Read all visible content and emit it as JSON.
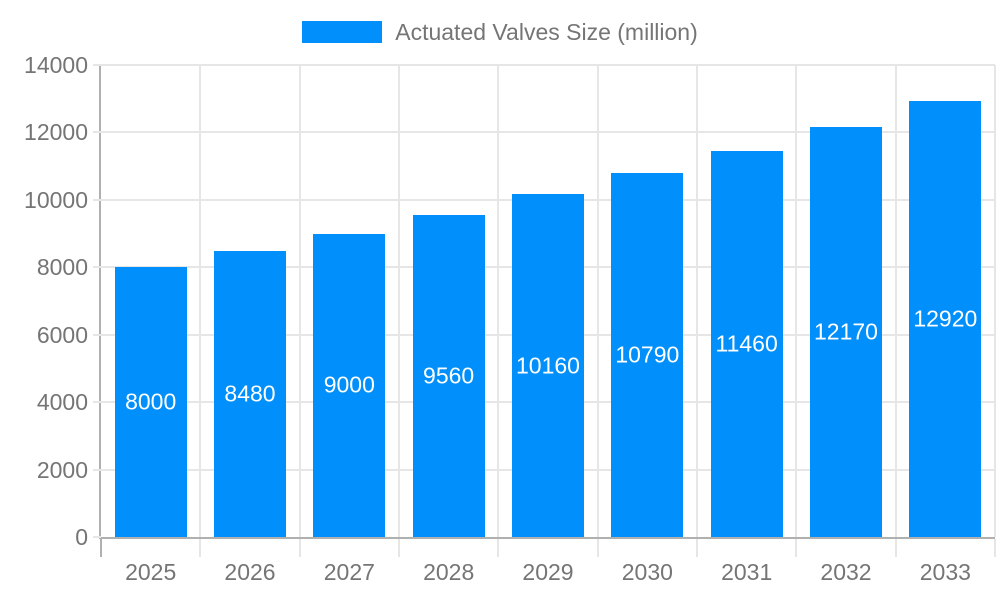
{
  "chart_data": {
    "type": "bar",
    "title": "",
    "legend": {
      "label": "Actuated Valves Size (million)",
      "position": "top"
    },
    "categories": [
      "2025",
      "2026",
      "2027",
      "2028",
      "2029",
      "2030",
      "2031",
      "2032",
      "2033"
    ],
    "series": [
      {
        "name": "Actuated Valves Size (million)",
        "values": [
          8000,
          8480,
          9000,
          9560,
          10160,
          10790,
          11460,
          12170,
          12920
        ]
      }
    ],
    "data_labels": [
      "8000",
      "8480",
      "9000",
      "9560",
      "10160",
      "10790",
      "11460",
      "12170",
      "12920"
    ],
    "yticks": [
      0,
      2000,
      4000,
      6000,
      8000,
      10000,
      12000,
      14000
    ],
    "ylim": [
      0,
      14000
    ],
    "xlabel": "",
    "ylabel": "",
    "grid": true
  },
  "colors": {
    "bar": "#008FFB",
    "grid": "#e6e6e6",
    "axis": "#b0b0b0",
    "tick": "#e6e6e6",
    "label": "#757575",
    "data_label": "#ffffff"
  }
}
